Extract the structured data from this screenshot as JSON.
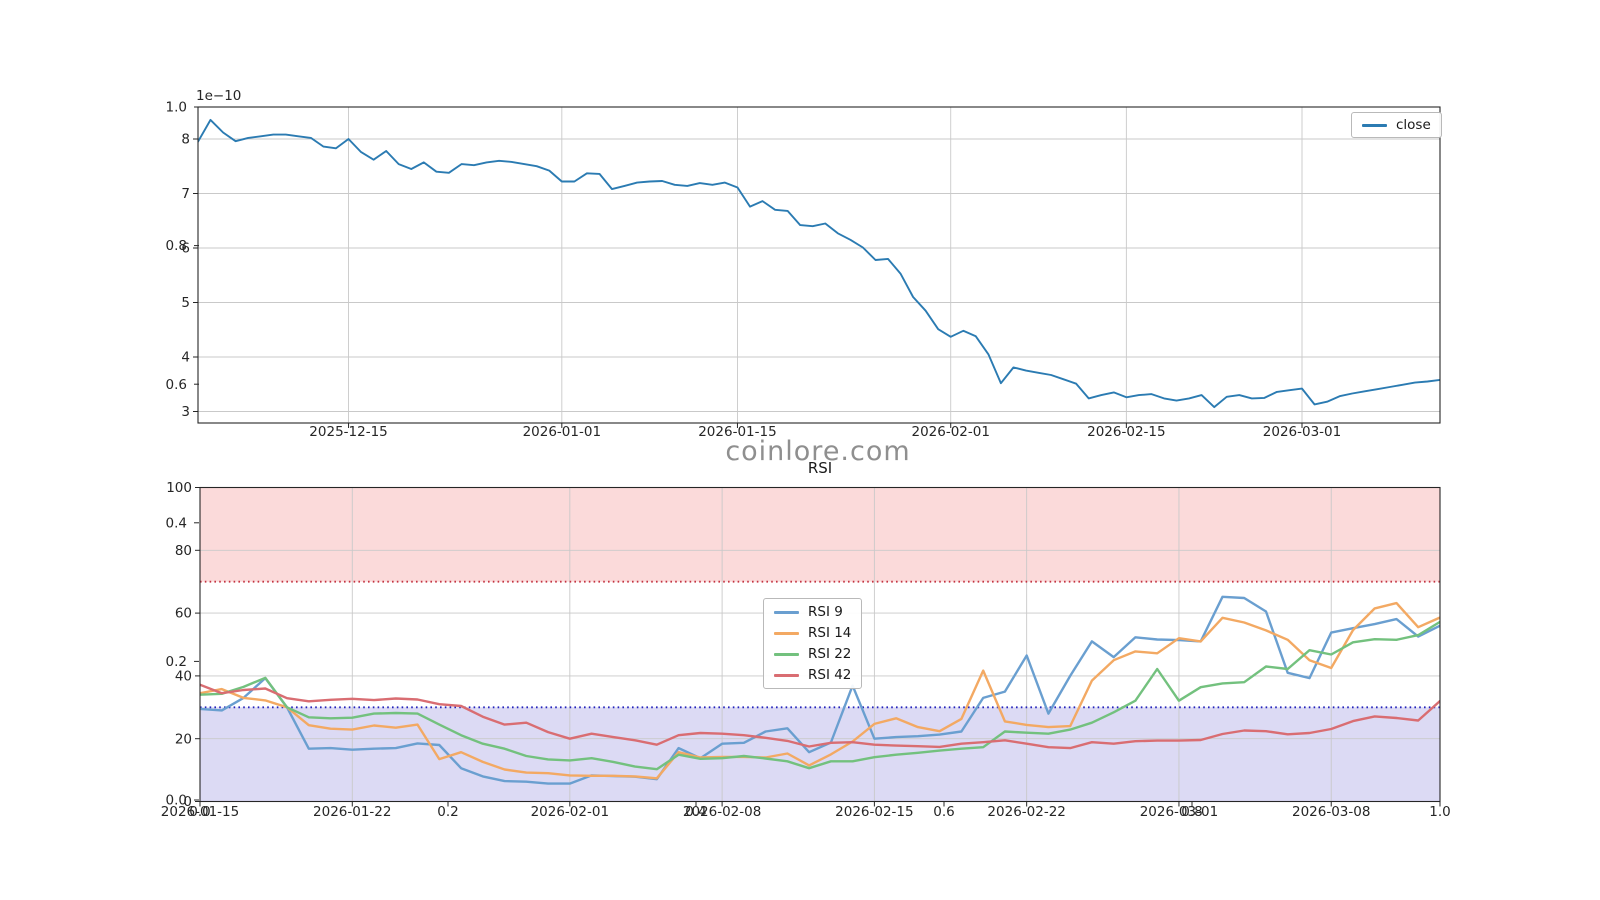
{
  "figure": {
    "watermark": "coinlore.com"
  },
  "overlay_axis": {
    "x_ticks": [
      "0.0",
      "0.2",
      "0.4",
      "0.6",
      "0.8",
      "1.0"
    ],
    "y_ticks": [
      "1.0",
      "0.8",
      "0.6",
      "0.4",
      "0.2",
      "0.0"
    ]
  },
  "chart_data": [
    {
      "type": "line",
      "title": "",
      "y_offset_label": "1e−10",
      "ylim": [
        2.79,
        8.59
      ],
      "y_ticks": [
        8,
        7,
        6,
        5,
        4,
        3
      ],
      "grid": true,
      "legend_position": "upper right",
      "x_range_days": 99,
      "x_tick_labels": [
        {
          "label": "2025-12-15",
          "day": 12
        },
        {
          "label": "2026-01-01",
          "day": 29
        },
        {
          "label": "2026-01-15",
          "day": 43
        },
        {
          "label": "2026-02-01",
          "day": 60
        },
        {
          "label": "2026-02-15",
          "day": 74
        },
        {
          "label": "2026-03-01",
          "day": 88
        }
      ],
      "series": [
        {
          "name": "close",
          "color": "#2b7bb2",
          "values": [
            7.95,
            8.35,
            8.12,
            7.96,
            8.02,
            8.05,
            8.08,
            8.08,
            8.05,
            8.02,
            7.86,
            7.83,
            8.0,
            7.76,
            7.62,
            7.78,
            7.54,
            7.45,
            7.57,
            7.4,
            7.38,
            7.54,
            7.52,
            7.57,
            7.6,
            7.58,
            7.54,
            7.5,
            7.42,
            7.22,
            7.22,
            7.37,
            7.36,
            7.08,
            7.14,
            7.2,
            7.22,
            7.23,
            7.16,
            7.14,
            7.19,
            7.16,
            7.2,
            7.11,
            6.76,
            6.86,
            6.7,
            6.68,
            6.42,
            6.4,
            6.45,
            6.27,
            6.15,
            6.01,
            5.78,
            5.8,
            5.53,
            5.1,
            4.85,
            4.51,
            4.37,
            4.48,
            4.38,
            4.05,
            3.52,
            3.81,
            3.75,
            3.71,
            3.67,
            3.59,
            3.51,
            3.24,
            3.3,
            3.35,
            3.26,
            3.3,
            3.32,
            3.24,
            3.2,
            3.24,
            3.3,
            3.08,
            3.27,
            3.3,
            3.24,
            3.25,
            3.36,
            3.39,
            3.42,
            3.13,
            3.18,
            3.28,
            3.33,
            3.37,
            3.41,
            3.45,
            3.49,
            3.53,
            3.55,
            3.58
          ]
        }
      ]
    },
    {
      "type": "line",
      "title": "RSI",
      "ylim": [
        0,
        100
      ],
      "y_ticks": [
        100,
        80,
        60,
        40,
        20,
        0
      ],
      "grid": true,
      "legend_position": "center",
      "x_range_days": 57,
      "x_tick_labels": [
        {
          "label": "2026-01-15",
          "day": 0
        },
        {
          "label": "2026-01-22",
          "day": 7
        },
        {
          "label": "2026-02-01",
          "day": 17
        },
        {
          "label": "2026-02-08",
          "day": 24
        },
        {
          "label": "2026-02-15",
          "day": 31
        },
        {
          "label": "2026-02-22",
          "day": 38
        },
        {
          "label": "2026-03-01",
          "day": 45
        },
        {
          "label": "2026-03-08",
          "day": 52
        }
      ],
      "bands": [
        {
          "from": 70,
          "to": 100,
          "color": "#fbdada",
          "meaning": "overbought"
        },
        {
          "from": 0,
          "to": 30,
          "color": "#dcdaf4",
          "meaning": "oversold"
        }
      ],
      "ref_lines": [
        {
          "value": 70,
          "color": "#c43341",
          "style": "dotted"
        },
        {
          "value": 30,
          "color": "#2424bb",
          "style": "dotted"
        }
      ],
      "series": [
        {
          "name": "RSI 9",
          "color": "#6a9fd0",
          "values": [
            29.5,
            29.0,
            33.0,
            39.3,
            30.0,
            16.8,
            17.0,
            16.5,
            16.8,
            17.0,
            18.5,
            18.0,
            10.6,
            8.0,
            6.5,
            6.3,
            5.7,
            5.7,
            8.3,
            8.1,
            7.9,
            7.1,
            17.0,
            13.8,
            18.4,
            18.7,
            22.3,
            23.3,
            15.7,
            18.8,
            36.9,
            20.0,
            20.5,
            20.8,
            21.3,
            22.3,
            33.0,
            35.0,
            46.5,
            28.0,
            40.0,
            51.0,
            46.0,
            52.3,
            51.6,
            51.4,
            51.0,
            65.2,
            64.8,
            60.5,
            41.0,
            39.3,
            53.8,
            55.2,
            56.5,
            58.1,
            52.5,
            56.0
          ]
        },
        {
          "name": "RSI 14",
          "color": "#f3a963",
          "values": [
            34.5,
            35.8,
            33.0,
            32.2,
            30.0,
            24.3,
            23.2,
            22.9,
            24.2,
            23.5,
            24.5,
            13.5,
            15.7,
            12.6,
            10.2,
            9.2,
            9.0,
            8.3,
            8.2,
            8.2,
            8.0,
            7.4,
            15.7,
            14.0,
            14.2,
            14.2,
            14.0,
            15.3,
            11.5,
            15.0,
            19.1,
            24.7,
            26.5,
            23.7,
            22.4,
            26.3,
            41.7,
            25.5,
            24.4,
            23.7,
            24.0,
            38.5,
            45.0,
            47.8,
            47.2,
            52.0,
            51.0,
            58.5,
            57.0,
            54.5,
            51.5,
            45.0,
            42.5,
            54.6,
            61.5,
            63.2,
            55.5,
            58.6
          ]
        },
        {
          "name": "RSI 22",
          "color": "#73c17e",
          "values": [
            34.0,
            34.3,
            36.5,
            39.4,
            30.0,
            26.8,
            26.5,
            26.7,
            28.0,
            28.2,
            28.0,
            24.5,
            21.1,
            18.4,
            16.8,
            14.5,
            13.4,
            13.1,
            13.8,
            12.6,
            11.1,
            10.3,
            14.9,
            13.6,
            13.8,
            14.5,
            13.7,
            12.8,
            10.6,
            12.8,
            12.8,
            14.1,
            14.9,
            15.5,
            16.2,
            16.8,
            17.3,
            22.3,
            21.9,
            21.6,
            22.9,
            25.1,
            28.4,
            32.1,
            42.2,
            32.1,
            36.4,
            37.6,
            38.0,
            43.0,
            42.2,
            48.2,
            46.8,
            50.7,
            51.7,
            51.5,
            53.0,
            57.2
          ]
        },
        {
          "name": "RSI 42",
          "color": "#d96d72",
          "values": [
            37.2,
            34.5,
            35.5,
            36.0,
            32.9,
            31.9,
            32.4,
            32.7,
            32.3,
            32.8,
            32.5,
            31.0,
            30.4,
            27.0,
            24.5,
            25.1,
            22.1,
            20.0,
            21.6,
            20.5,
            19.5,
            18.1,
            21.1,
            21.8,
            21.6,
            21.1,
            20.3,
            19.3,
            17.5,
            18.7,
            18.9,
            18.1,
            17.8,
            17.6,
            17.4,
            18.4,
            18.9,
            19.5,
            18.4,
            17.3,
            17.0,
            18.9,
            18.4,
            19.2,
            19.4,
            19.4,
            19.6,
            21.5,
            22.6,
            22.4,
            21.4,
            21.8,
            23.1,
            25.6,
            27.1,
            26.6,
            25.8,
            32.0
          ]
        }
      ]
    }
  ]
}
